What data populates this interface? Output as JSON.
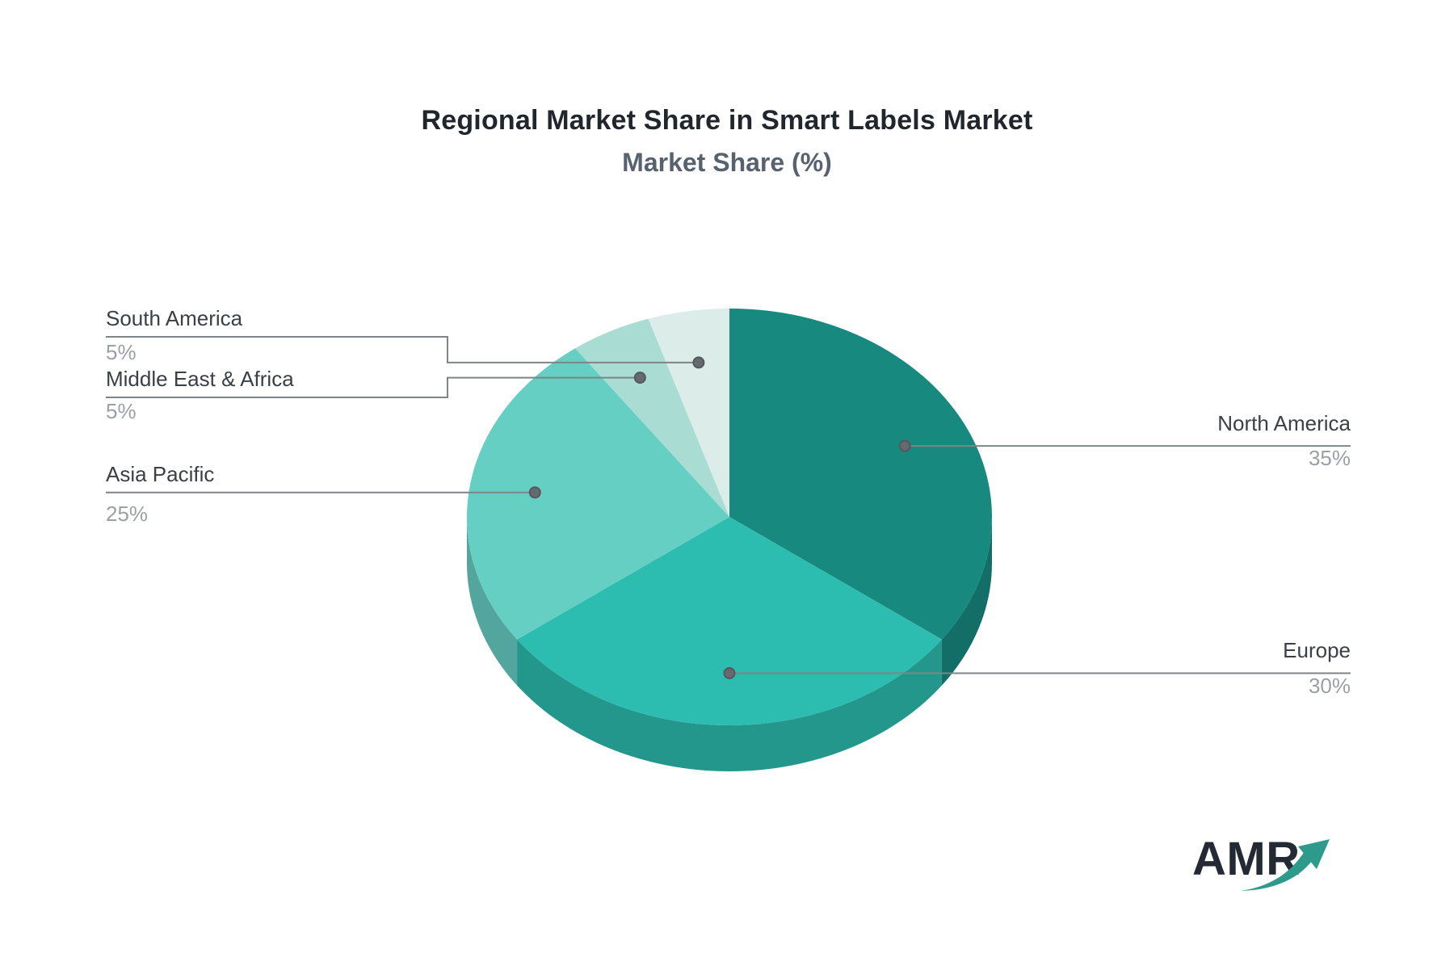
{
  "title": "Regional Market Share in Smart Labels Market",
  "subtitle": "Market Share (%)",
  "logo": {
    "text": "AMR"
  },
  "colors": {
    "background": "#ffffff",
    "title_text": "#21262c",
    "subtitle_text": "#57626e",
    "label_text": "#3a4045",
    "pct_text": "#9aa0a4",
    "connector": "#7f8487",
    "dot_fill": "#646a6e",
    "dot_stroke": "#54585c",
    "logo_text": "#232a34",
    "logo_arrow": "#2d9a8c"
  },
  "chart_data": {
    "type": "pie",
    "style": "3d",
    "title": "Regional Market Share in Smart Labels Market",
    "subtitle": "Market Share (%)",
    "unit": "%",
    "direction": "clockwise",
    "start_angle_deg": 0,
    "legend_position": "leader-labels",
    "slices": [
      {
        "label": "North America",
        "value": 35,
        "pct_label": "35%",
        "color": "#17897f",
        "label_side": "right"
      },
      {
        "label": "Europe",
        "value": 30,
        "pct_label": "30%",
        "color": "#2dbdb0",
        "label_side": "right"
      },
      {
        "label": "Asia Pacific",
        "value": 25,
        "pct_label": "25%",
        "color": "#66cfc4",
        "label_side": "left"
      },
      {
        "label": "Middle East & Africa",
        "value": 5,
        "pct_label": "5%",
        "color": "#a9dcd3",
        "label_side": "left"
      },
      {
        "label": "South America",
        "value": 5,
        "pct_label": "5%",
        "color": "#dbece9",
        "label_side": "left"
      }
    ]
  }
}
